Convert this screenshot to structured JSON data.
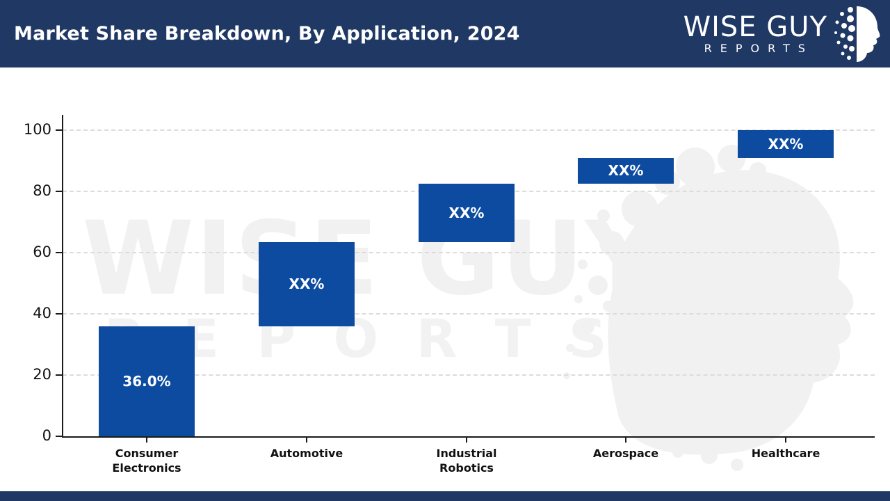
{
  "header": {
    "title": "Market Share Breakdown, By Application, 2024",
    "logo_line1": "WISE GUY",
    "logo_line2": "REPORTS",
    "bg_color": "#1f3864"
  },
  "watermark": {
    "line1": "WISE GUY",
    "line2": "R E P O R T S"
  },
  "chart_data": {
    "type": "bar",
    "subtype": "waterfall",
    "title": "Market Share Breakdown, By Application, 2024",
    "categories": [
      [
        "Consumer",
        "Electronics"
      ],
      [
        "Automotive"
      ],
      [
        "Industrial",
        "Robotics"
      ],
      [
        "Aerospace"
      ],
      [
        "Healthcare"
      ]
    ],
    "segments": [
      {
        "category": "Consumer Electronics",
        "start": 0,
        "end": 36,
        "label": "36.0%"
      },
      {
        "category": "Automotive",
        "start": 36,
        "end": 63.5,
        "label": "XX%"
      },
      {
        "category": "Industrial Robotics",
        "start": 63.5,
        "end": 82.5,
        "label": "XX%"
      },
      {
        "category": "Aerospace",
        "start": 82.5,
        "end": 91,
        "label": "XX%"
      },
      {
        "category": "Healthcare",
        "start": 91,
        "end": 100,
        "label": "XX%"
      }
    ],
    "yticks": [
      0,
      20,
      40,
      60,
      80,
      100
    ],
    "ylim": [
      0,
      105
    ],
    "xlabel": "",
    "ylabel": "",
    "grid": "horizontal-dashed",
    "legend": "none",
    "bar_color": "#0c4ba0"
  },
  "colors": {
    "header_bg": "#1f3864",
    "bar": "#0c4ba0",
    "grid": "#dcdcdc",
    "axis": "#1a1a1a",
    "watermark": "#f1f1f1"
  }
}
